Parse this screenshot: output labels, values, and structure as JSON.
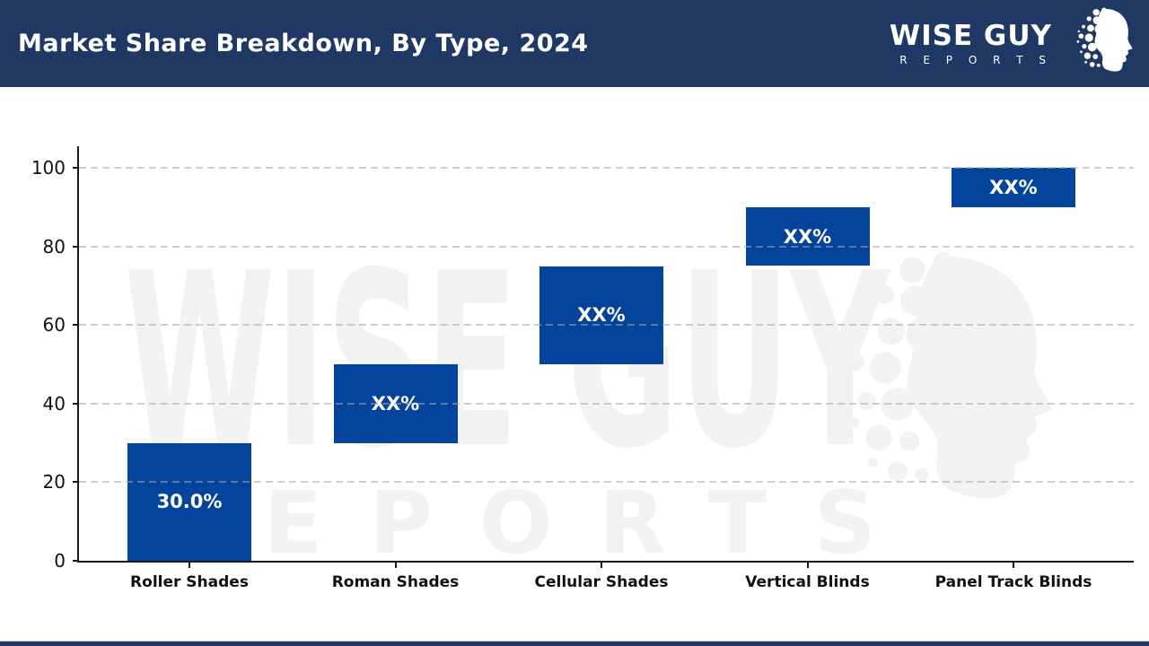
{
  "header": {
    "title": "Market Share Breakdown, By Type, 2024",
    "brand": {
      "line1": "WISE GUY",
      "line2": "R E P O R T S"
    }
  },
  "watermark": {
    "line1": "WISE GUY",
    "line2": "REPORTS"
  },
  "chart_data": {
    "type": "bar",
    "subtype": "waterfall",
    "title": "Market Share Breakdown, By Type, 2024",
    "categories": [
      "Roller Shades",
      "Roman Shades",
      "Cellular Shades",
      "Vertical Blinds",
      "Panel Track Blinds"
    ],
    "bars": [
      {
        "category": "Roller Shades",
        "start": 0,
        "end": 30,
        "value": 30,
        "label": "30.0%"
      },
      {
        "category": "Roman Shades",
        "start": 30,
        "end": 50,
        "value": 20,
        "label": "XX%"
      },
      {
        "category": "Cellular Shades",
        "start": 50,
        "end": 75,
        "value": 25,
        "label": "XX%"
      },
      {
        "category": "Vertical Blinds",
        "start": 75,
        "end": 90,
        "value": 15,
        "label": "XX%"
      },
      {
        "category": "Panel Track Blinds",
        "start": 90,
        "end": 100,
        "value": 10,
        "label": "XX%"
      }
    ],
    "yticks": [
      0,
      20,
      40,
      60,
      80,
      100
    ],
    "ylim": [
      0,
      105
    ],
    "xlabel": "",
    "ylabel": "",
    "grid": "horizontal-dashed",
    "legend": "none",
    "bar_color": "#05449C",
    "bar_label_color": "#FFFFFF"
  },
  "colors": {
    "header_bg": "#1F3864",
    "footer_bg": "#1F3864",
    "bar": "#05449C",
    "watermark": "#F2F2F5",
    "axis": "#1A1A1A",
    "gridline": "#D8D8D8",
    "background": "#FFFFFF"
  }
}
